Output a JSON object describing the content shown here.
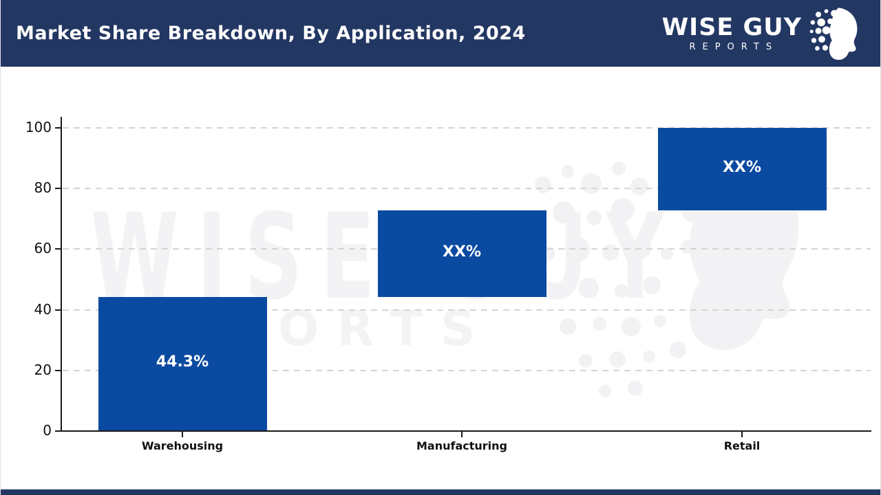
{
  "header": {
    "title": "Market Share Breakdown, By Application, 2024",
    "logo": {
      "line1": "WISE GUY",
      "line2": "REPORTS"
    }
  },
  "watermark": {
    "line1": "WISE GUY",
    "line2": "REPORTS"
  },
  "colors": {
    "header_bg": "#233763",
    "bar": "#0b4aa1",
    "bar_label": "#ffffff",
    "grid": "#d4d4d4",
    "axis": "#1a1a1a",
    "watermark": "#f3f3f5"
  },
  "chart_data": {
    "type": "bar",
    "subtype": "waterfall",
    "title": "Market Share Breakdown, By Application, 2024",
    "xlabel": "",
    "ylabel": "",
    "categories": [
      "Warehousing",
      "Manufacturing",
      "Retail"
    ],
    "segments": [
      {
        "category": "Warehousing",
        "start": 0,
        "end": 44.3,
        "label": "44.3%"
      },
      {
        "category": "Manufacturing",
        "start": 44.3,
        "end": 72.8,
        "label": "XX%"
      },
      {
        "category": "Retail",
        "start": 72.8,
        "end": 100,
        "label": "XX%"
      }
    ],
    "yticks": [
      0,
      20,
      40,
      60,
      80,
      100
    ],
    "ylim": [
      0,
      104
    ],
    "grid": "dashed-horizontal",
    "legend": "none"
  }
}
